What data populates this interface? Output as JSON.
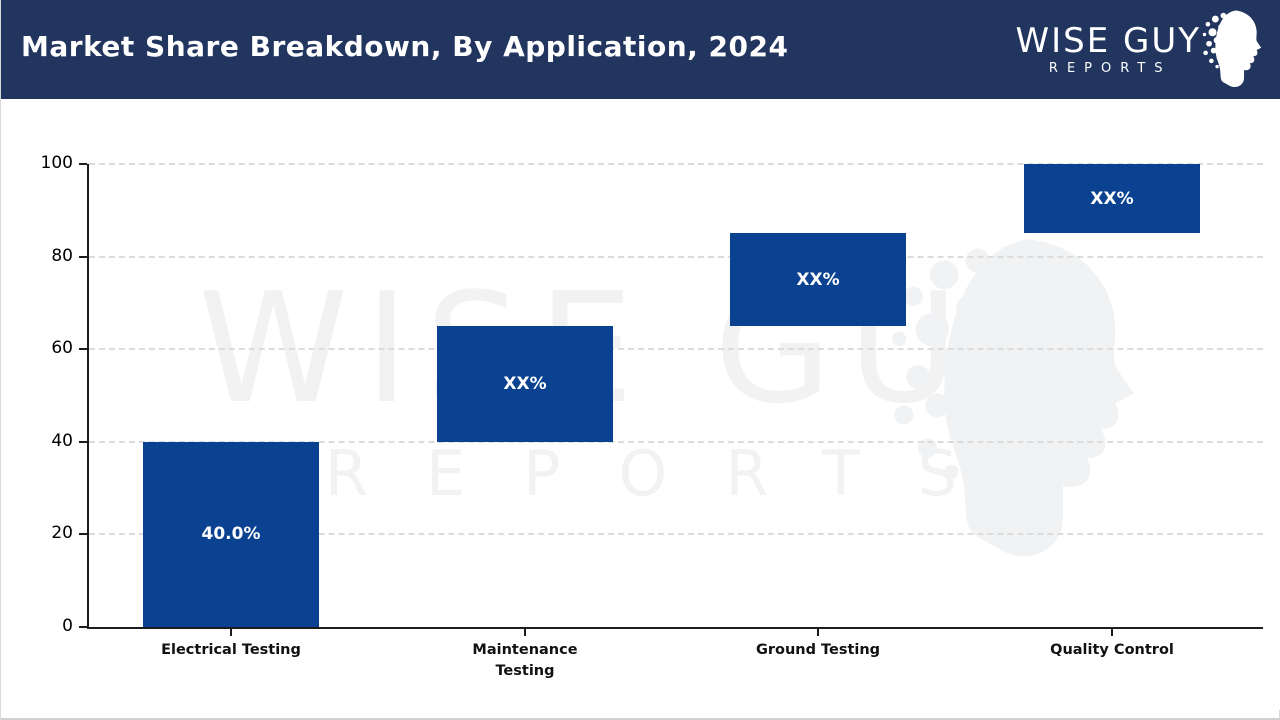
{
  "header": {
    "title": "Market Share Breakdown, By Application, 2024",
    "bg_color": "#22355f",
    "logo": {
      "line1": "WISE GUY",
      "line2": "REPORTS"
    }
  },
  "watermark": {
    "line1": "WISE GUY",
    "line2": "REPORTS"
  },
  "chart_data": {
    "type": "bar",
    "variant": "waterfall-segments",
    "title": "Market Share Breakdown, By Application, 2024",
    "categories": [
      "Electrical Testing",
      "Maintenance\nTesting",
      "Ground Testing",
      "Quality Control"
    ],
    "segments": [
      {
        "category": "Electrical Testing",
        "start": 0,
        "end": 40,
        "label": "40.0%"
      },
      {
        "category": "Maintenance Testing",
        "start": 40,
        "end": 65,
        "label": "XX%"
      },
      {
        "category": "Ground Testing",
        "start": 65,
        "end": 85,
        "label": "XX%"
      },
      {
        "category": "Quality Control",
        "start": 85,
        "end": 100,
        "label": "XX%"
      }
    ],
    "ylim": [
      0,
      100
    ],
    "yticks": [
      0,
      20,
      40,
      60,
      80,
      100
    ],
    "grid": {
      "axis": "y",
      "style": "dashed",
      "color": "#dcdcdc"
    },
    "legend": "none",
    "bar_color": "#0a4191",
    "value_label_color": "#ffffff",
    "axis_color": "#1c1c1c"
  }
}
